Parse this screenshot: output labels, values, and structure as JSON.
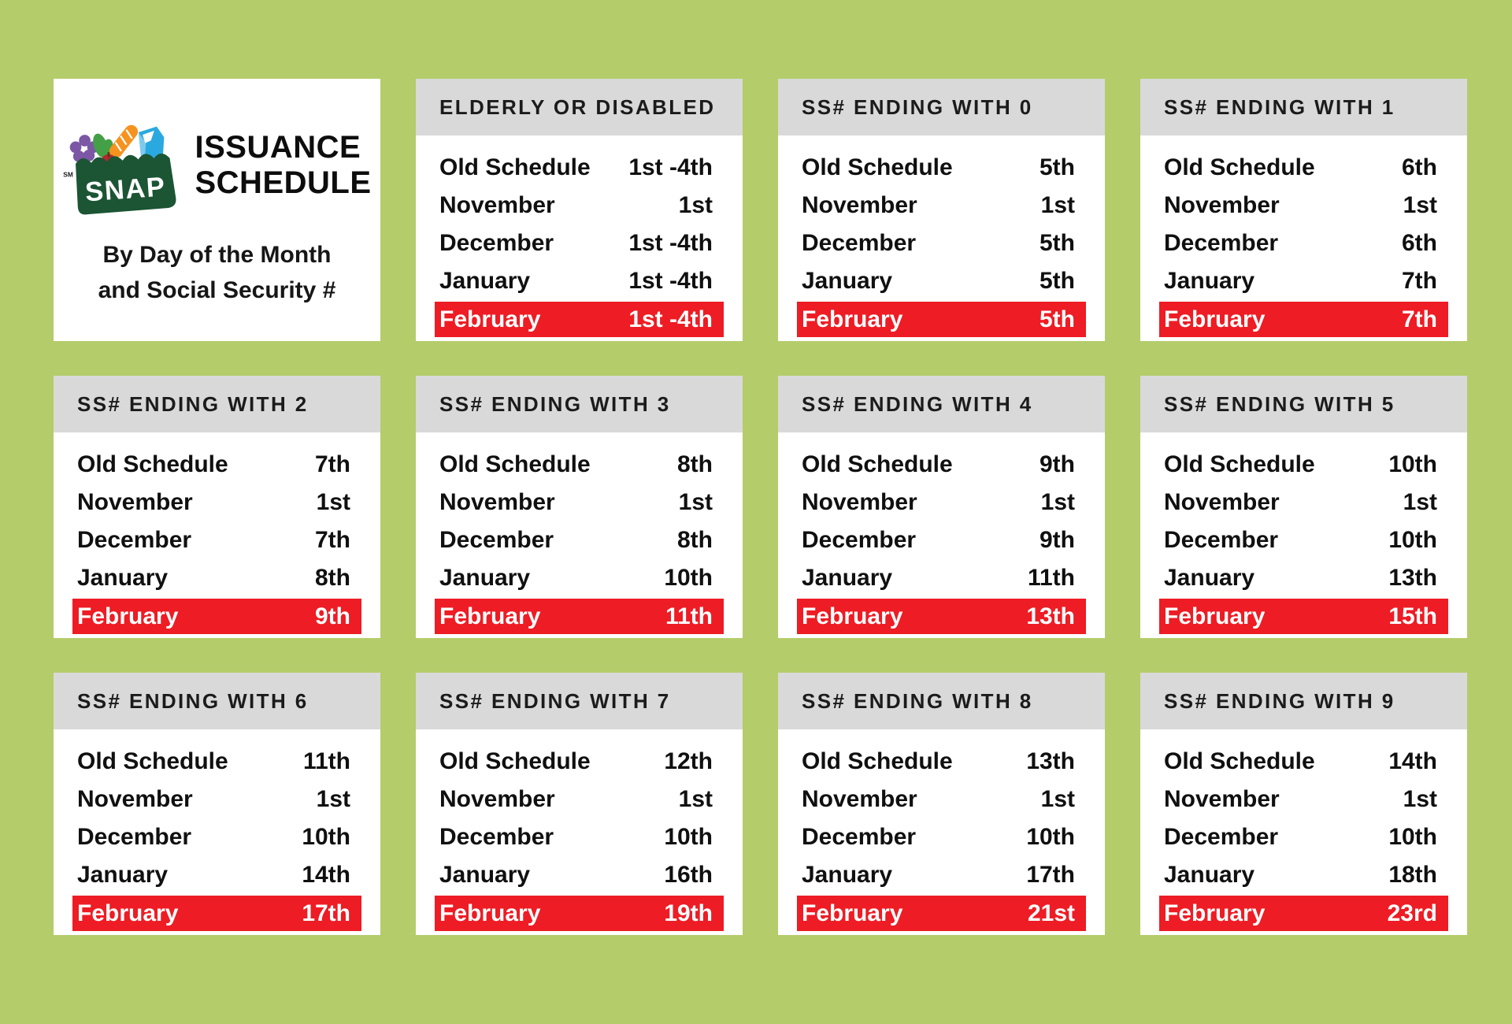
{
  "colors": {
    "background_green": "#b5cc6b",
    "header_gray": "#d9d9d9",
    "highlight_red": "#ee1c24",
    "bag_green": "#1b5534",
    "card_white": "#ffffff",
    "text_black": "#101010"
  },
  "title_card": {
    "logo": {
      "bag_label": "SNAP",
      "sm_label": "SM",
      "grocery_items": [
        "grapes",
        "leafy-greens",
        "apple",
        "baguette",
        "milk-carton"
      ]
    },
    "title_line1": "ISSUANCE",
    "title_line2": "SCHEDULE",
    "subtitle_line1": "By Day of the Month",
    "subtitle_line2": "and Social Security #"
  },
  "row_labels": [
    "Old Schedule",
    "November",
    "December",
    "January",
    "February"
  ],
  "cards": [
    {
      "header": "ELDERLY OR DISABLED",
      "values": [
        "1st -4th",
        "1st",
        "1st -4th",
        "1st -4th",
        "1st -4th"
      ]
    },
    {
      "header": "SS# ENDING WITH 0",
      "values": [
        "5th",
        "1st",
        "5th",
        "5th",
        "5th"
      ]
    },
    {
      "header": "SS# ENDING WITH 1",
      "values": [
        "6th",
        "1st",
        "6th",
        "7th",
        "7th"
      ]
    },
    {
      "header": "SS# ENDING WITH 2",
      "values": [
        "7th",
        "1st",
        "7th",
        "8th",
        "9th"
      ]
    },
    {
      "header": "SS# ENDING WITH 3",
      "values": [
        "8th",
        "1st",
        "8th",
        "10th",
        "11th"
      ]
    },
    {
      "header": "SS# ENDING WITH 4",
      "values": [
        "9th",
        "1st",
        "9th",
        "11th",
        "13th"
      ]
    },
    {
      "header": "SS# ENDING WITH 5",
      "values": [
        "10th",
        "1st",
        "10th",
        "13th",
        "15th"
      ]
    },
    {
      "header": "SS# ENDING WITH 6",
      "values": [
        "11th",
        "1st",
        "10th",
        "14th",
        "17th"
      ]
    },
    {
      "header": "SS# ENDING WITH 7",
      "values": [
        "12th",
        "1st",
        "10th",
        "16th",
        "19th"
      ]
    },
    {
      "header": "SS# ENDING WITH 8",
      "values": [
        "13th",
        "1st",
        "10th",
        "17th",
        "21st"
      ]
    },
    {
      "header": "SS# ENDING WITH 9",
      "values": [
        "14th",
        "1st",
        "10th",
        "18th",
        "23rd"
      ]
    }
  ]
}
